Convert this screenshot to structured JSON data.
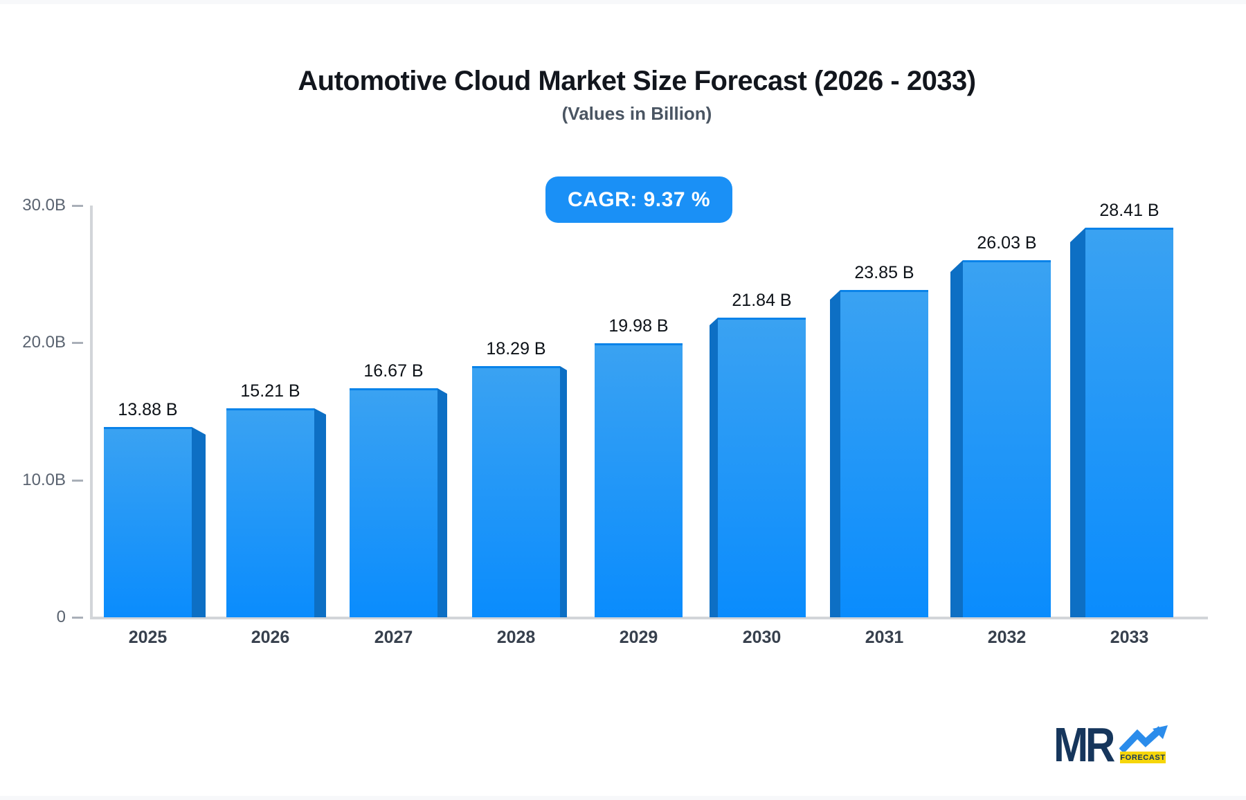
{
  "title": "Automotive Cloud Market Size Forecast (2026 - 2033)",
  "subtitle": "(Values in Billion)",
  "cagr_badge": "CAGR: 9.37 %",
  "logo": {
    "text": "MR",
    "tag": "FORECAST"
  },
  "colors": {
    "badge_blue": "#1a90f6",
    "bar_gradient_top": "#3aa2f2",
    "bar_gradient_bottom": "#0a8cfd",
    "bar_side": "#0d6fc4",
    "bar_top_edge": "#0a83e9",
    "axis_gray": "#d2d5d9",
    "logo_navy": "#16365c",
    "logo_yellow": "#f6d60a",
    "logo_arrow_blue": "#2b8ceb"
  },
  "chart_data": {
    "type": "bar",
    "title": "Automotive Cloud Market Size Forecast (2026 - 2033)",
    "subtitle": "(Values in Billion)",
    "categories": [
      "2025",
      "2026",
      "2027",
      "2028",
      "2029",
      "2030",
      "2031",
      "2032",
      "2033"
    ],
    "values": [
      13.88,
      15.21,
      16.67,
      18.29,
      19.98,
      21.84,
      23.85,
      26.03,
      28.41
    ],
    "value_labels": [
      "13.88 B",
      "15.21 B",
      "16.67 B",
      "18.29 B",
      "19.98 B",
      "21.84 B",
      "23.85 B",
      "26.03 B",
      "28.41 B"
    ],
    "series_unit": "Billion USD",
    "cagr": "9.37 %",
    "ylim": [
      0,
      30
    ],
    "yticks": [
      {
        "label": "30.0B",
        "value": 30
      },
      {
        "label": "20.0B",
        "value": 20
      },
      {
        "label": "10.0B",
        "value": 10
      },
      {
        "label": "0",
        "value": 0
      }
    ],
    "grid": false,
    "legend": false,
    "style": "3d-extruded-perspective-bars"
  }
}
